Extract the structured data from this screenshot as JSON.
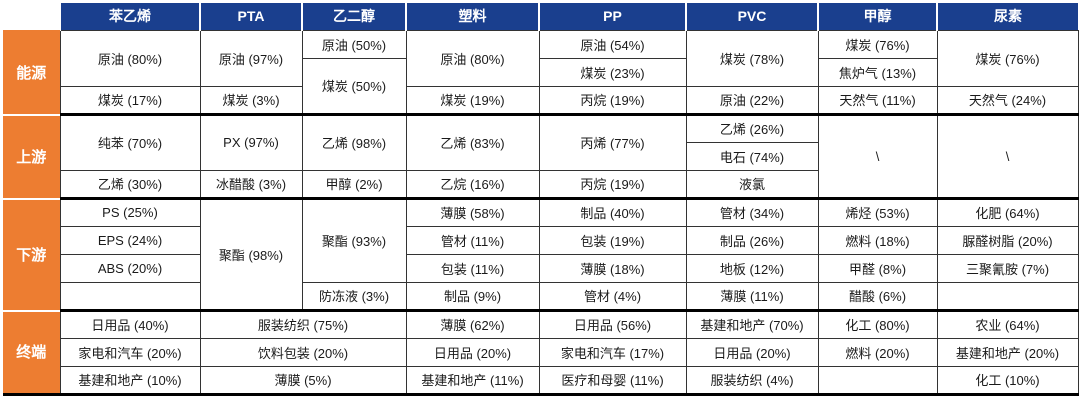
{
  "colors": {
    "header_bg": "#1a3f8e",
    "label_bg": "#ED7D31",
    "grid_line": "#333333",
    "thick_line": "#000000"
  },
  "chart_data": {
    "type": "table",
    "corner": "",
    "headers": [
      "苯乙烯",
      "PTA",
      "乙二醇",
      "塑料",
      "PP",
      "PVC",
      "甲醇",
      "尿素"
    ],
    "sections": [
      {
        "label": "能源",
        "rows": 3,
        "columns": [
          {
            "cells": [
              {
                "text": "原油 (80%)",
                "span": 2
              },
              {
                "text": "煤炭 (17%)",
                "span": 1
              }
            ]
          },
          {
            "cells": [
              {
                "text": "原油 (97%)",
                "span": 2
              },
              {
                "text": "煤炭 (3%)",
                "span": 1
              }
            ]
          },
          {
            "cells": [
              {
                "text": "原油 (50%)",
                "span": 1
              },
              {
                "text": "煤炭 (50%)",
                "span": 2
              }
            ]
          },
          {
            "cells": [
              {
                "text": "原油 (80%)",
                "span": 2
              },
              {
                "text": "煤炭 (19%)",
                "span": 1
              }
            ]
          },
          {
            "cells": [
              {
                "text": "原油 (54%)",
                "span": 1
              },
              {
                "text": "煤炭 (23%)",
                "span": 1
              },
              {
                "text": "丙烷 (19%)",
                "span": 1
              }
            ]
          },
          {
            "cells": [
              {
                "text": "煤炭 (78%)",
                "span": 2
              },
              {
                "text": "原油 (22%)",
                "span": 1
              }
            ]
          },
          {
            "cells": [
              {
                "text": "煤炭 (76%)",
                "span": 1
              },
              {
                "text": "焦炉气 (13%)",
                "span": 1
              },
              {
                "text": "天然气 (11%)",
                "span": 1
              }
            ]
          },
          {
            "cells": [
              {
                "text": "煤炭 (76%)",
                "span": 2
              },
              {
                "text": "天然气 (24%)",
                "span": 1
              }
            ]
          }
        ]
      },
      {
        "label": "上游",
        "rows": 3,
        "columns": [
          {
            "cells": [
              {
                "text": "纯苯 (70%)",
                "span": 2
              },
              {
                "text": "乙烯 (30%)",
                "span": 1
              }
            ]
          },
          {
            "cells": [
              {
                "text": "PX (97%)",
                "span": 2
              },
              {
                "text": "冰醋酸 (3%)",
                "span": 1
              }
            ]
          },
          {
            "cells": [
              {
                "text": "乙烯 (98%)",
                "span": 2
              },
              {
                "text": "甲醇 (2%)",
                "span": 1
              }
            ]
          },
          {
            "cells": [
              {
                "text": "乙烯 (83%)",
                "span": 2
              },
              {
                "text": "乙烷 (16%)",
                "span": 1
              }
            ]
          },
          {
            "cells": [
              {
                "text": "丙烯 (77%)",
                "span": 2
              },
              {
                "text": "丙烷 (19%)",
                "span": 1
              }
            ]
          },
          {
            "cells": [
              {
                "text": "乙烯 (26%)",
                "span": 1
              },
              {
                "text": "电石 (74%)",
                "span": 1
              },
              {
                "text": "液氯",
                "span": 1
              }
            ]
          },
          {
            "cells": [
              {
                "text": "\\",
                "span": 3
              }
            ]
          },
          {
            "cells": [
              {
                "text": "\\",
                "span": 3
              }
            ]
          }
        ]
      },
      {
        "label": "下游",
        "rows": 4,
        "columns": [
          {
            "cells": [
              {
                "text": "PS (25%)",
                "span": 1
              },
              {
                "text": "EPS (24%)",
                "span": 1
              },
              {
                "text": "ABS (20%)",
                "span": 1
              },
              {
                "text": "",
                "span": 1
              }
            ]
          },
          {
            "cells": [
              {
                "text": "聚酯 (98%)",
                "span": 4
              }
            ]
          },
          {
            "cells": [
              {
                "text": "聚酯 (93%)",
                "span": 3
              },
              {
                "text": "防冻液 (3%)",
                "span": 1
              }
            ]
          },
          {
            "cells": [
              {
                "text": "薄膜 (58%)",
                "span": 1
              },
              {
                "text": "管材 (11%)",
                "span": 1
              },
              {
                "text": "包装 (11%)",
                "span": 1
              },
              {
                "text": "制品 (9%)",
                "span": 1
              }
            ]
          },
          {
            "cells": [
              {
                "text": "制品 (40%)",
                "span": 1
              },
              {
                "text": "包装 (19%)",
                "span": 1
              },
              {
                "text": "薄膜 (18%)",
                "span": 1
              },
              {
                "text": "管材 (4%)",
                "span": 1
              }
            ]
          },
          {
            "cells": [
              {
                "text": "管材 (34%)",
                "span": 1
              },
              {
                "text": "制品 (26%)",
                "span": 1
              },
              {
                "text": "地板 (12%)",
                "span": 1
              },
              {
                "text": "薄膜 (11%)",
                "span": 1
              }
            ]
          },
          {
            "cells": [
              {
                "text": "烯烃 (53%)",
                "span": 1
              },
              {
                "text": "燃料 (18%)",
                "span": 1
              },
              {
                "text": "甲醛 (8%)",
                "span": 1
              },
              {
                "text": "醋酸 (6%)",
                "span": 1
              }
            ]
          },
          {
            "cells": [
              {
                "text": "化肥 (64%)",
                "span": 1
              },
              {
                "text": "脲醛树脂 (20%)",
                "span": 1
              },
              {
                "text": "三聚氰胺 (7%)",
                "span": 1
              },
              {
                "text": "",
                "span": 1
              }
            ]
          }
        ]
      },
      {
        "label": "终端",
        "rows": 3,
        "columns": [
          {
            "cells": [
              {
                "text": "日用品 (40%)",
                "span": 1
              },
              {
                "text": "家电和汽车 (20%)",
                "span": 1
              },
              {
                "text": "基建和地产 (10%)",
                "span": 1
              }
            ]
          },
          {
            "colspan": 2,
            "cells": [
              {
                "text": "服装纺织 (75%)",
                "span": 1
              },
              {
                "text": "饮料包装 (20%)",
                "span": 1
              },
              {
                "text": "薄膜 (5%)",
                "span": 1
              }
            ]
          },
          {
            "cells": [
              {
                "text": "薄膜 (62%)",
                "span": 1
              },
              {
                "text": "日用品 (20%)",
                "span": 1
              },
              {
                "text": "基建和地产 (11%)",
                "span": 1
              }
            ]
          },
          {
            "cells": [
              {
                "text": "日用品 (56%)",
                "span": 1
              },
              {
                "text": "家电和汽车 (17%)",
                "span": 1
              },
              {
                "text": "医疗和母婴 (11%)",
                "span": 1
              }
            ]
          },
          {
            "cells": [
              {
                "text": "基建和地产 (70%)",
                "span": 1
              },
              {
                "text": "日用品 (20%)",
                "span": 1
              },
              {
                "text": "服装纺织 (4%)",
                "span": 1
              }
            ]
          },
          {
            "cells": [
              {
                "text": "化工 (80%)",
                "span": 1
              },
              {
                "text": "燃料 (20%)",
                "span": 1
              },
              {
                "text": "",
                "span": 1
              }
            ]
          },
          {
            "cells": [
              {
                "text": "农业 (64%)",
                "span": 1
              },
              {
                "text": "基建和地产 (20%)",
                "span": 1
              },
              {
                "text": "化工 (10%)",
                "span": 1
              }
            ]
          }
        ]
      }
    ]
  }
}
